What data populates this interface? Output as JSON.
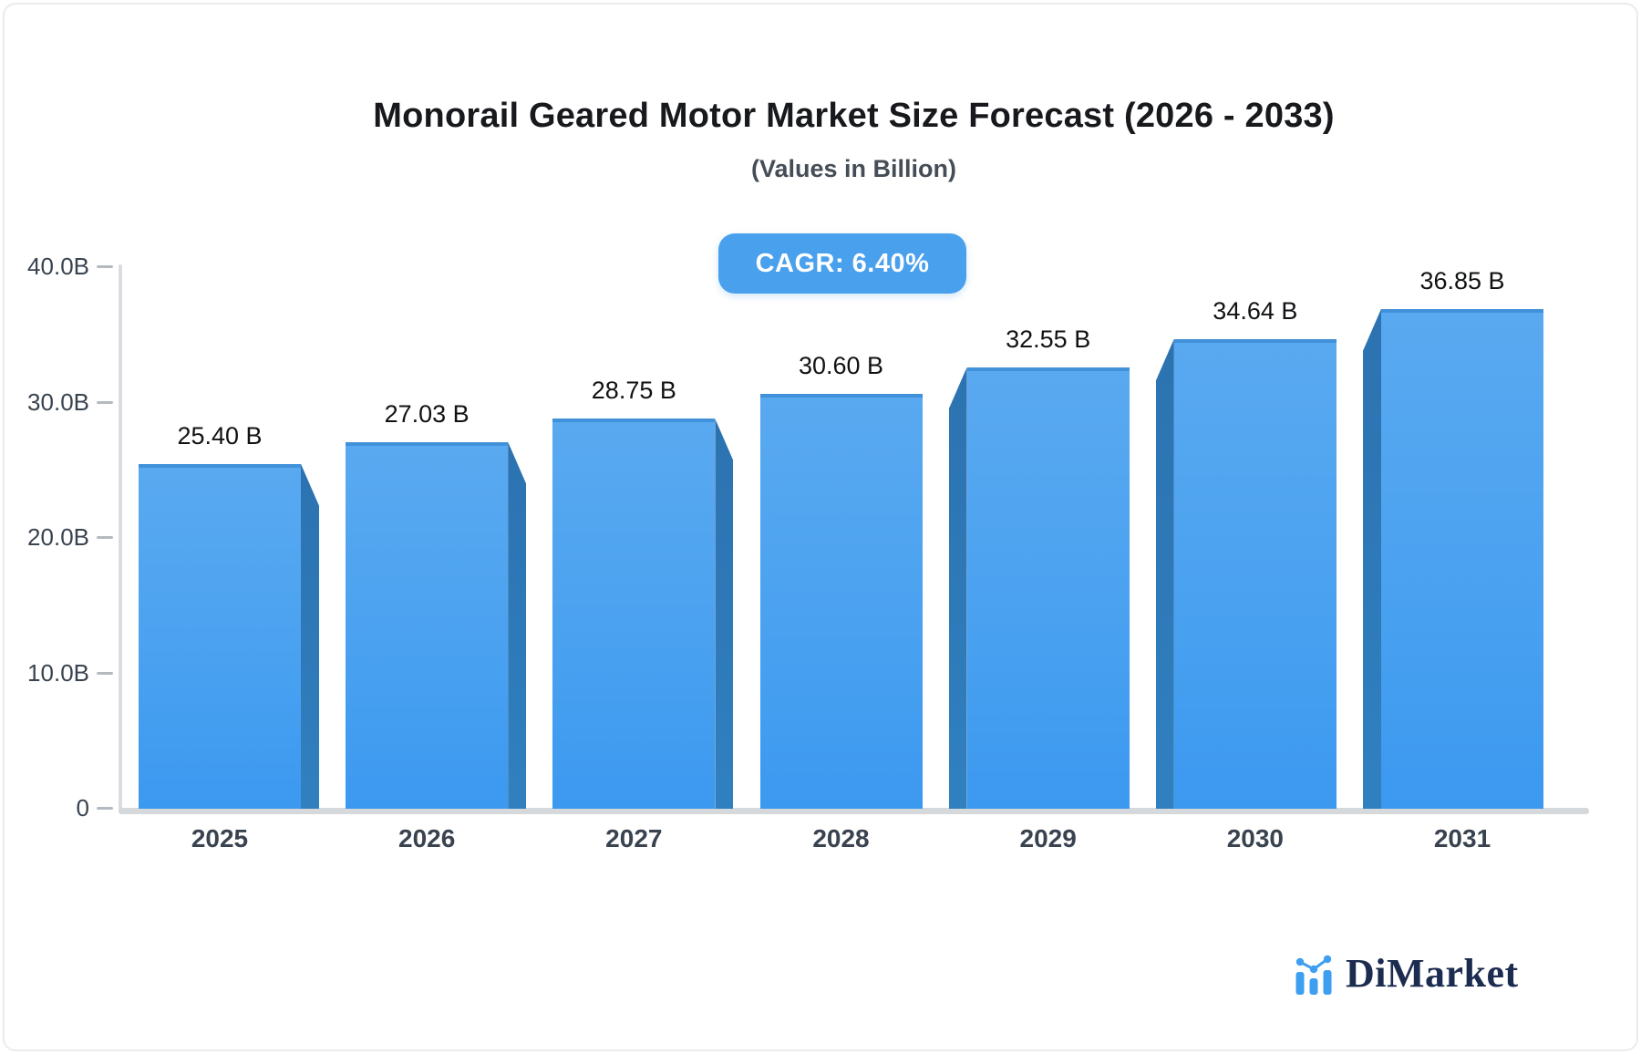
{
  "header": {
    "title": "Monorail Geared Motor Market Size Forecast (2026 - 2033)",
    "subtitle": "(Values in Billion)",
    "cagr_badge": "CAGR: 6.40%"
  },
  "chart_data": {
    "type": "bar",
    "title": "Monorail Geared Motor Market Size Forecast (2026 - 2033)",
    "subtitle": "(Values in Billion)",
    "unit": "Billion",
    "cagr_percent": 6.4,
    "categories": [
      "2025",
      "2026",
      "2027",
      "2028",
      "2029",
      "2030",
      "2031"
    ],
    "values": [
      25.4,
      27.03,
      28.75,
      30.6,
      32.55,
      34.64,
      36.85
    ],
    "value_labels": [
      "25.40 B",
      "27.03 B",
      "28.75 B",
      "30.60 B",
      "32.55 B",
      "34.64 B",
      "36.85 B"
    ],
    "y_axis": {
      "min": 0,
      "max": 40,
      "ticks": [
        {
          "label": "40.0B",
          "value": 40
        },
        {
          "label": "30.0B",
          "value": 30
        },
        {
          "label": "20.0B",
          "value": 20
        },
        {
          "label": "10.0B",
          "value": 10
        },
        {
          "label": "0",
          "value": 0
        }
      ]
    },
    "grid": false,
    "legend": false,
    "bar_style": "3d-beveled",
    "colors": {
      "bar_top": "#59A9F0",
      "bar_bottom": "#3C99F0",
      "bar_side": "#2E78B7",
      "bar_top_edge": "#4190DA",
      "badge_background": "#49A0EC",
      "badge_text": "#FFFFFF",
      "axis_line": "#DADDE0",
      "title_text": "#17191C",
      "axis_text": "#39434F",
      "logo_navy": "#1C2C50",
      "logo_blue": "#3E9FF0"
    }
  },
  "footer": {
    "logo_text": "DiMarket",
    "logo_icon": "bar-chart-logo-icon"
  }
}
